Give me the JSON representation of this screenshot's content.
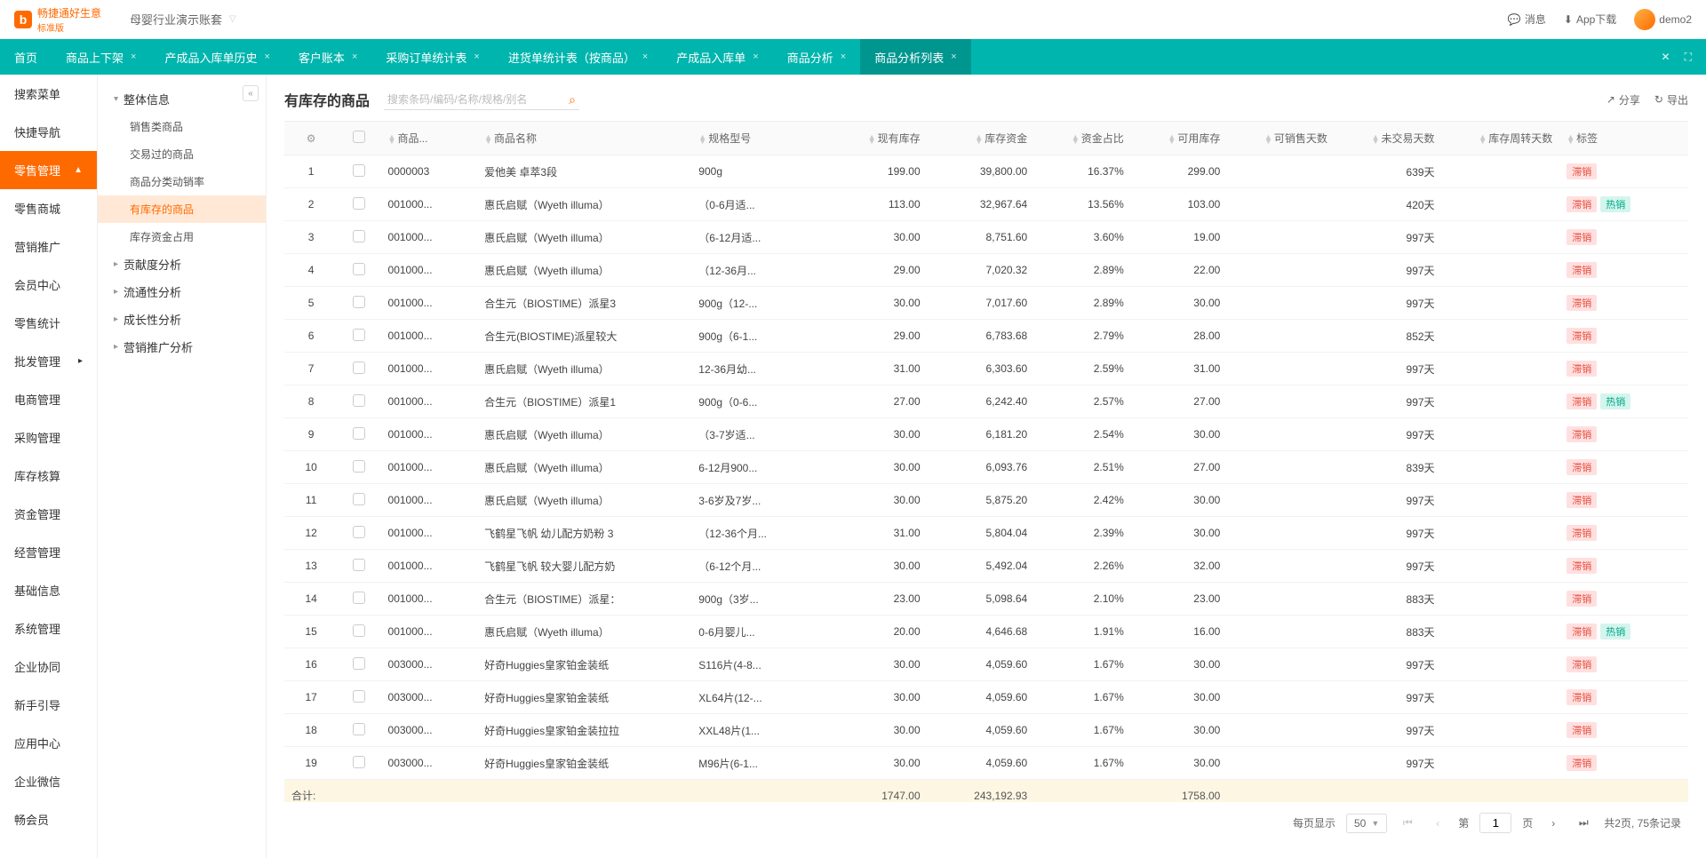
{
  "header": {
    "logo_text": "畅捷通好生意",
    "logo_sub": "标准版",
    "account": "母婴行业演示账套",
    "message": "消息",
    "app_download": "App下载",
    "user": "demo2"
  },
  "tabs": [
    {
      "label": "首页",
      "closable": false
    },
    {
      "label": "商品上下架",
      "closable": true
    },
    {
      "label": "产成品入库单历史",
      "closable": true
    },
    {
      "label": "客户账本",
      "closable": true
    },
    {
      "label": "采购订单统计表",
      "closable": true
    },
    {
      "label": "进货单统计表（按商品）",
      "closable": true
    },
    {
      "label": "产成品入库单",
      "closable": true
    },
    {
      "label": "商品分析",
      "closable": true
    },
    {
      "label": "商品分析列表",
      "closable": true,
      "active": true
    }
  ],
  "left_nav": [
    {
      "label": "搜索菜单"
    },
    {
      "label": "快捷导航"
    },
    {
      "label": "零售管理",
      "active": true,
      "caret": "▲"
    },
    {
      "label": "零售商城"
    },
    {
      "label": "营销推广"
    },
    {
      "label": "会员中心"
    },
    {
      "label": "零售统计"
    },
    {
      "label": "批发管理",
      "caret": "▸"
    },
    {
      "label": "电商管理"
    },
    {
      "label": "采购管理"
    },
    {
      "label": "库存核算"
    },
    {
      "label": "资金管理"
    },
    {
      "label": "经营管理"
    },
    {
      "label": "基础信息"
    },
    {
      "label": "系统管理"
    },
    {
      "label": "企业协同"
    },
    {
      "label": "新手引导"
    },
    {
      "label": "应用中心"
    },
    {
      "label": "企业微信"
    },
    {
      "label": "畅会员"
    }
  ],
  "sub_nav": {
    "group1": {
      "label": "整体信息",
      "items": [
        {
          "label": "销售类商品"
        },
        {
          "label": "交易过的商品"
        },
        {
          "label": "商品分类动销率"
        },
        {
          "label": "有库存的商品",
          "active": true
        },
        {
          "label": "库存资金占用"
        }
      ]
    },
    "others": [
      {
        "label": "贡献度分析"
      },
      {
        "label": "流通性分析"
      },
      {
        "label": "成长性分析"
      },
      {
        "label": "营销推广分析"
      }
    ]
  },
  "page": {
    "title": "有库存的商品",
    "search_placeholder": "搜索条码/编码/名称/规格/别名",
    "share": "分享",
    "export": "导出"
  },
  "table": {
    "columns": [
      "",
      "",
      "商品...",
      "商品名称",
      "规格型号",
      "现有库存",
      "库存资金",
      "资金占比",
      "可用库存",
      "可销售天数",
      "未交易天数",
      "库存周转天数",
      "标签"
    ],
    "rows": [
      {
        "n": 1,
        "code": "0000003",
        "name": "爱他美 卓萃3段",
        "spec": "900g",
        "stock": "199.00",
        "fund": "39,800.00",
        "ratio": "16.37%",
        "avail": "299.00",
        "sellable": "",
        "notrade": "639天",
        "turnover": "",
        "tags": [
          "滞销"
        ]
      },
      {
        "n": 2,
        "code": "001000...",
        "name": "惠氏启赋（Wyeth illuma）",
        "spec": "（0-6月适...",
        "stock": "113.00",
        "fund": "32,967.64",
        "ratio": "13.56%",
        "avail": "103.00",
        "sellable": "",
        "notrade": "420天",
        "turnover": "",
        "tags": [
          "滞销",
          "热销"
        ]
      },
      {
        "n": 3,
        "code": "001000...",
        "name": "惠氏启赋（Wyeth illuma）",
        "spec": "（6-12月适...",
        "stock": "30.00",
        "fund": "8,751.60",
        "ratio": "3.60%",
        "avail": "19.00",
        "sellable": "",
        "notrade": "997天",
        "turnover": "",
        "tags": [
          "滞销"
        ]
      },
      {
        "n": 4,
        "code": "001000...",
        "name": "惠氏启赋（Wyeth illuma）",
        "spec": "（12-36月...",
        "stock": "29.00",
        "fund": "7,020.32",
        "ratio": "2.89%",
        "avail": "22.00",
        "sellable": "",
        "notrade": "997天",
        "turnover": "",
        "tags": [
          "滞销"
        ]
      },
      {
        "n": 5,
        "code": "001000...",
        "name": "合生元（BIOSTIME）派星3",
        "spec": "900g（12-...",
        "stock": "30.00",
        "fund": "7,017.60",
        "ratio": "2.89%",
        "avail": "30.00",
        "sellable": "",
        "notrade": "997天",
        "turnover": "",
        "tags": [
          "滞销"
        ]
      },
      {
        "n": 6,
        "code": "001000...",
        "name": "合生元(BIOSTIME)派星较大",
        "spec": "900g（6-1...",
        "stock": "29.00",
        "fund": "6,783.68",
        "ratio": "2.79%",
        "avail": "28.00",
        "sellable": "",
        "notrade": "852天",
        "turnover": "",
        "tags": [
          "滞销"
        ]
      },
      {
        "n": 7,
        "code": "001000...",
        "name": "惠氏启赋（Wyeth illuma）",
        "spec": "12-36月幼...",
        "stock": "31.00",
        "fund": "6,303.60",
        "ratio": "2.59%",
        "avail": "31.00",
        "sellable": "",
        "notrade": "997天",
        "turnover": "",
        "tags": [
          "滞销"
        ]
      },
      {
        "n": 8,
        "code": "001000...",
        "name": "合生元（BIOSTIME）派星1",
        "spec": "900g（0-6...",
        "stock": "27.00",
        "fund": "6,242.40",
        "ratio": "2.57%",
        "avail": "27.00",
        "sellable": "",
        "notrade": "997天",
        "turnover": "",
        "tags": [
          "滞销",
          "热销"
        ]
      },
      {
        "n": 9,
        "code": "001000...",
        "name": "惠氏启赋（Wyeth illuma）",
        "spec": "（3-7岁适...",
        "stock": "30.00",
        "fund": "6,181.20",
        "ratio": "2.54%",
        "avail": "30.00",
        "sellable": "",
        "notrade": "997天",
        "turnover": "",
        "tags": [
          "滞销"
        ]
      },
      {
        "n": 10,
        "code": "001000...",
        "name": "惠氏启赋（Wyeth illuma）",
        "spec": "6-12月900...",
        "stock": "30.00",
        "fund": "6,093.76",
        "ratio": "2.51%",
        "avail": "27.00",
        "sellable": "",
        "notrade": "839天",
        "turnover": "",
        "tags": [
          "滞销"
        ]
      },
      {
        "n": 11,
        "code": "001000...",
        "name": "惠氏启赋（Wyeth illuma）",
        "spec": "3-6岁及7岁...",
        "stock": "30.00",
        "fund": "5,875.20",
        "ratio": "2.42%",
        "avail": "30.00",
        "sellable": "",
        "notrade": "997天",
        "turnover": "",
        "tags": [
          "滞销"
        ]
      },
      {
        "n": 12,
        "code": "001000...",
        "name": "飞鹤星飞帆 幼儿配方奶粉 3",
        "spec": "（12-36个月...",
        "stock": "31.00",
        "fund": "5,804.04",
        "ratio": "2.39%",
        "avail": "30.00",
        "sellable": "",
        "notrade": "997天",
        "turnover": "",
        "tags": [
          "滞销"
        ]
      },
      {
        "n": 13,
        "code": "001000...",
        "name": "飞鹤星飞帆 较大婴儿配方奶",
        "spec": "（6-12个月...",
        "stock": "30.00",
        "fund": "5,492.04",
        "ratio": "2.26%",
        "avail": "32.00",
        "sellable": "",
        "notrade": "997天",
        "turnover": "",
        "tags": [
          "滞销"
        ]
      },
      {
        "n": 14,
        "code": "001000...",
        "name": "合生元（BIOSTIME）派星：",
        "spec": "900g（3岁...",
        "stock": "23.00",
        "fund": "5,098.64",
        "ratio": "2.10%",
        "avail": "23.00",
        "sellable": "",
        "notrade": "883天",
        "turnover": "",
        "tags": [
          "滞销"
        ]
      },
      {
        "n": 15,
        "code": "001000...",
        "name": "惠氏启赋（Wyeth illuma）",
        "spec": "0-6月婴儿...",
        "stock": "20.00",
        "fund": "4,646.68",
        "ratio": "1.91%",
        "avail": "16.00",
        "sellable": "",
        "notrade": "883天",
        "turnover": "",
        "tags": [
          "滞销",
          "热销"
        ]
      },
      {
        "n": 16,
        "code": "003000...",
        "name": "好奇Huggies皇家铂金装纸",
        "spec": "S116片(4-8...",
        "stock": "30.00",
        "fund": "4,059.60",
        "ratio": "1.67%",
        "avail": "30.00",
        "sellable": "",
        "notrade": "997天",
        "turnover": "",
        "tags": [
          "滞销"
        ]
      },
      {
        "n": 17,
        "code": "003000...",
        "name": "好奇Huggies皇家铂金装纸",
        "spec": "XL64片(12-...",
        "stock": "30.00",
        "fund": "4,059.60",
        "ratio": "1.67%",
        "avail": "30.00",
        "sellable": "",
        "notrade": "997天",
        "turnover": "",
        "tags": [
          "滞销"
        ]
      },
      {
        "n": 18,
        "code": "003000...",
        "name": "好奇Huggies皇家铂金装拉拉",
        "spec": "XXL48片(1...",
        "stock": "30.00",
        "fund": "4,059.60",
        "ratio": "1.67%",
        "avail": "30.00",
        "sellable": "",
        "notrade": "997天",
        "turnover": "",
        "tags": [
          "滞销"
        ]
      },
      {
        "n": 19,
        "code": "003000...",
        "name": "好奇Huggies皇家铂金装纸",
        "spec": "M96片(6-1...",
        "stock": "30.00",
        "fund": "4,059.60",
        "ratio": "1.67%",
        "avail": "30.00",
        "sellable": "",
        "notrade": "997天",
        "turnover": "",
        "tags": [
          "滞销"
        ]
      }
    ],
    "footer": {
      "label": "合计:",
      "stock": "1747.00",
      "fund": "243,192.93",
      "avail": "1758.00"
    }
  },
  "pagination": {
    "per_page_label": "每页显示",
    "per_page": "50",
    "page_label_pre": "第",
    "page": "1",
    "page_label_post": "页",
    "summary": "共2页, 75条记录"
  }
}
